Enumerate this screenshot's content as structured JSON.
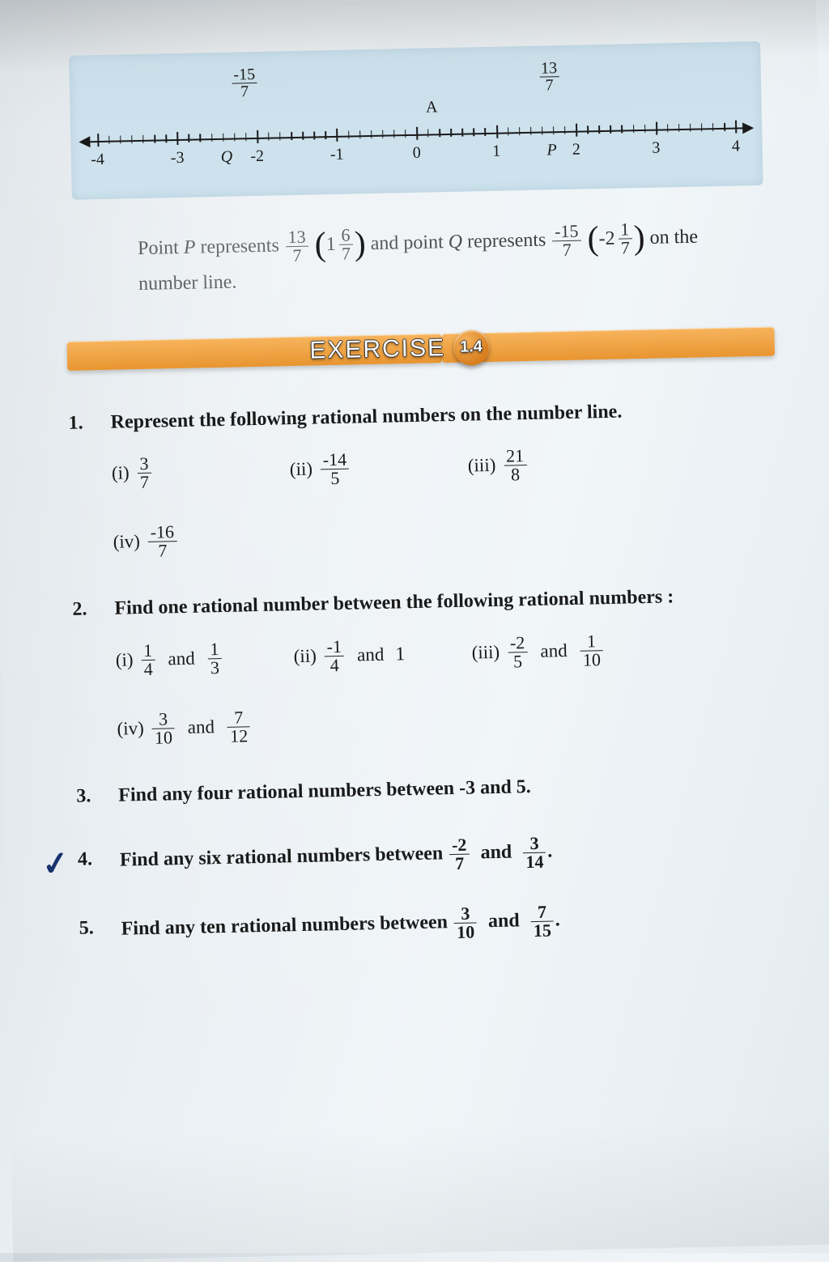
{
  "numberLine": {
    "background": "#cde2ed",
    "min": -4,
    "max": 4,
    "majorLabels": [
      "-4",
      "-3",
      "-2",
      "-1",
      "0",
      "1",
      "2",
      "3",
      "4"
    ],
    "subdivisionsPerUnit": 7,
    "axisColor": "#1a1a1a",
    "topFractions": [
      {
        "num": "-15",
        "den": "7",
        "atValue": -2.14
      },
      {
        "num": "13",
        "den": "7",
        "atValue": 1.68
      }
    ],
    "letters": [
      {
        "text": "A",
        "atValue": 0.2
      }
    ],
    "extraBelow": [
      {
        "text": "Q",
        "atValue": -2.28,
        "italic": true
      },
      {
        "text": "P",
        "atValue": 1.78,
        "italic": true
      }
    ]
  },
  "pointText": {
    "prefix": "Point ",
    "pVar": "P",
    "mid1": " represents ",
    "frac1": {
      "num": "13",
      "den": "7"
    },
    "mixed1": {
      "whole": "1",
      "num": "6",
      "den": "7"
    },
    "mid2": " and point ",
    "qVar": "Q",
    "mid3": " represents ",
    "frac2": {
      "num": "-15",
      "den": "7"
    },
    "mixed2": {
      "whole": "-2",
      "num": "1",
      "den": "7"
    },
    "suffix": " on the number line."
  },
  "exercise": {
    "label": "EXERCISE",
    "number": "1.4",
    "barColor": "#e89530",
    "circleColor": "#d87e1e"
  },
  "questions": [
    {
      "stem": "Represent the following rational numbers on the number line.",
      "options": [
        {
          "label": "(i)",
          "frac": {
            "num": "3",
            "den": "7"
          }
        },
        {
          "label": "(ii)",
          "frac": {
            "num": "-14",
            "den": "5"
          }
        },
        {
          "label": "(iii)",
          "frac": {
            "num": "21",
            "den": "8"
          }
        },
        {
          "label": "(iv)",
          "frac": {
            "num": "-16",
            "den": "7"
          }
        }
      ]
    },
    {
      "stem": "Find one rational number between the following rational numbers :",
      "options": [
        {
          "label": "(i)",
          "pair": [
            {
              "num": "1",
              "den": "4"
            },
            {
              "num": "1",
              "den": "3"
            }
          ]
        },
        {
          "label": "(ii)",
          "pair": [
            {
              "num": "-1",
              "den": "4"
            },
            "1"
          ]
        },
        {
          "label": "(iii)",
          "pair": [
            {
              "num": "-2",
              "den": "5"
            },
            {
              "num": "1",
              "den": "10"
            }
          ]
        },
        {
          "label": "(iv)",
          "pair": [
            {
              "num": "3",
              "den": "10"
            },
            {
              "num": "7",
              "den": "12"
            }
          ]
        }
      ]
    },
    {
      "stem": "Find any four rational numbers between -3 and 5."
    },
    {
      "stem": "Find any six rational numbers between ",
      "inlinePair": [
        {
          "num": "-2",
          "den": "7"
        },
        {
          "num": "3",
          "den": "14"
        }
      ],
      "stemSuffix": ".",
      "checked": true
    },
    {
      "stem": "Find any ten rational numbers between ",
      "inlinePair": [
        {
          "num": "3",
          "den": "10"
        },
        {
          "num": "7",
          "den": "15"
        }
      ],
      "stemSuffix": "."
    }
  ],
  "andWord": "and"
}
